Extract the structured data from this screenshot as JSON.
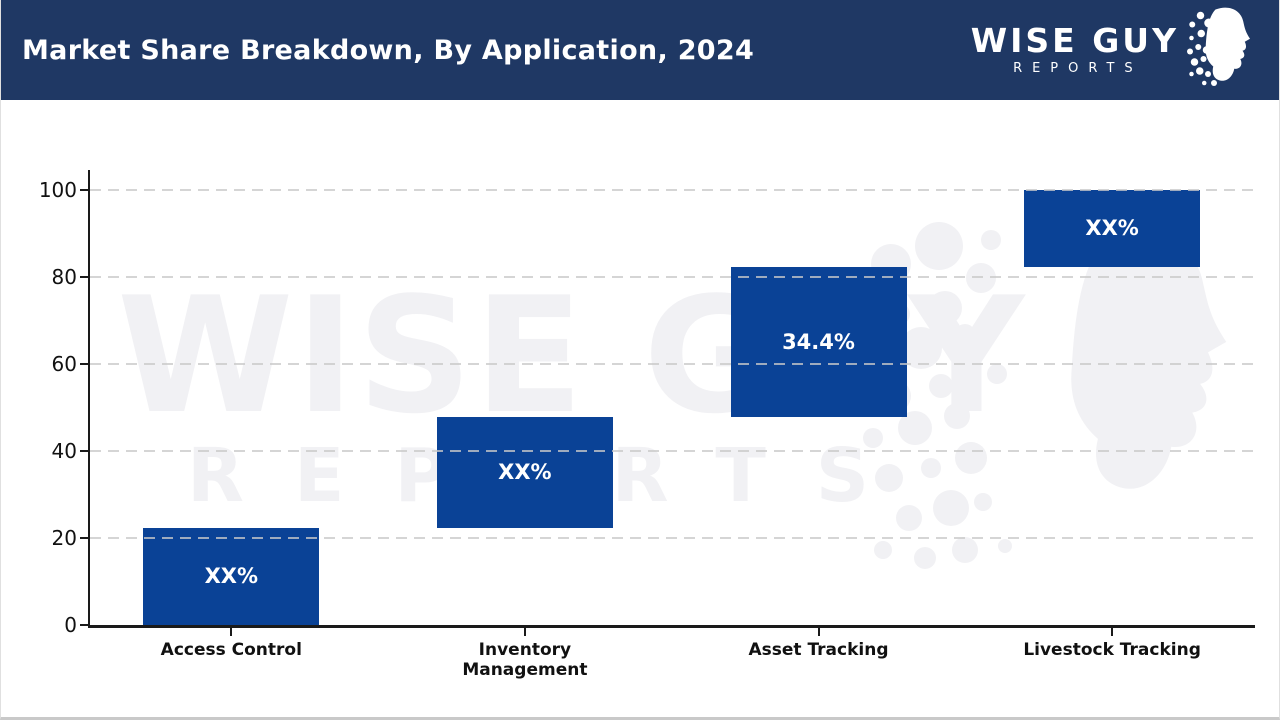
{
  "header": {
    "title": "Market Share Breakdown, By Application, 2024",
    "logo": {
      "brand": "WISE GUY",
      "sub": "REPORTS"
    }
  },
  "watermark": {
    "brand": "WISE GUY",
    "sub": "REPORTS"
  },
  "colors": {
    "header_bg": "#1f3864",
    "bar_fill": "#0a4296",
    "bar_label": "#ffffff",
    "grid_line": "#c9c9c9",
    "axis_line": "#1a1a1a",
    "tick_label": "#111111",
    "watermark": "#f1f1f4",
    "page_bg": "#ffffff"
  },
  "chart_data": {
    "type": "bar",
    "subtype": "waterfall",
    "title": "Market Share Breakdown, By Application, 2024",
    "categories": [
      "Access Control",
      "Inventory Management",
      "Asset Tracking",
      "Livestock Tracking"
    ],
    "segments": [
      {
        "category": "Access Control",
        "label_lines": [
          "Access Control"
        ],
        "start": 0,
        "end": 22.4,
        "value_label": "XX%"
      },
      {
        "category": "Inventory Management",
        "label_lines": [
          "Inventory",
          "Management"
        ],
        "start": 22.4,
        "end": 47.9,
        "value_label": "XX%"
      },
      {
        "category": "Asset Tracking",
        "label_lines": [
          "Asset Tracking"
        ],
        "start": 47.9,
        "end": 82.3,
        "value_label": "34.4%"
      },
      {
        "category": "Livestock Tracking",
        "label_lines": [
          "Livestock Tracking"
        ],
        "start": 82.3,
        "end": 100,
        "value_label": "XX%"
      }
    ],
    "y_ticks": [
      0,
      20,
      40,
      60,
      80,
      100
    ],
    "ylim": [
      0,
      104.5
    ],
    "xlabel": "",
    "ylabel": "",
    "grid": true,
    "legend": false
  }
}
